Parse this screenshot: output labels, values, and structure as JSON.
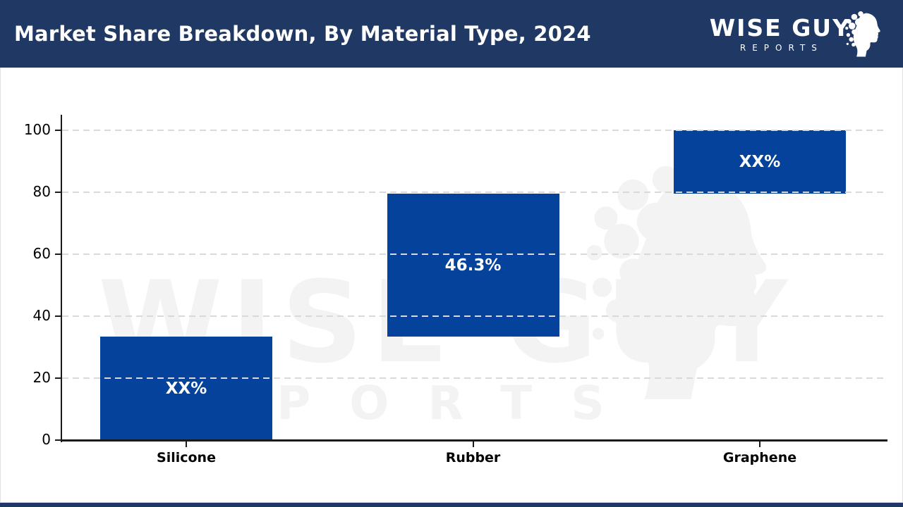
{
  "header": {
    "title": "Market Share Breakdown, By Material Type, 2024",
    "logo": {
      "brand": "WISE GUY",
      "sub": "REPORTS"
    }
  },
  "watermark": {
    "brand": "WISE GUY",
    "sub": "REPORTS"
  },
  "chart_data": {
    "type": "bar",
    "variant": "waterfall",
    "title": "Market Share Breakdown, By Material Type, 2024",
    "categories": [
      "Silicone",
      "Rubber",
      "Graphene"
    ],
    "segments": [
      {
        "category": "Silicone",
        "start": 0,
        "end": 33.3,
        "label": "XX%"
      },
      {
        "category": "Rubber",
        "start": 33.3,
        "end": 79.6,
        "label": "46.3%"
      },
      {
        "category": "Graphene",
        "start": 79.6,
        "end": 100,
        "label": "XX%"
      }
    ],
    "ylabel": "",
    "xlabel": "",
    "yticks": [
      0,
      20,
      40,
      60,
      80,
      100
    ],
    "ylim": [
      0,
      105
    ],
    "grid": "horizontal-dashed-above-bars",
    "legend": "none",
    "bar_color": "#05429c",
    "bar_label_color": "#ffffff"
  },
  "colors": {
    "header_bg": "#1f3864",
    "footer_bg": "#1f3864",
    "accent_blue": "#05429c",
    "grid": "#d9d9d9",
    "axis": "#1a1a1a",
    "watermark": "#f3f3f3"
  }
}
